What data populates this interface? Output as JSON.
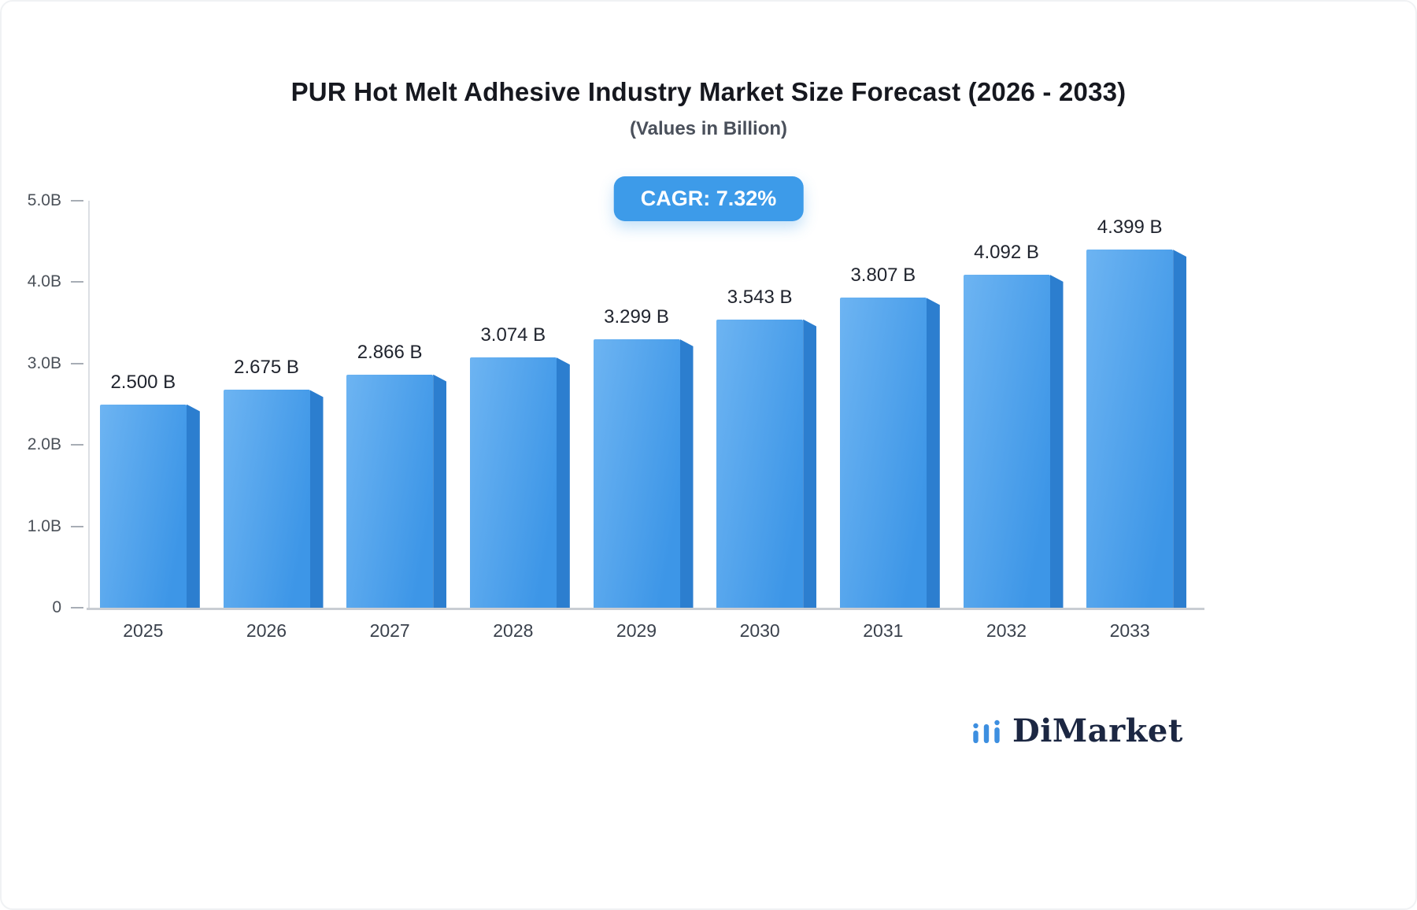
{
  "header": {
    "title": "PUR Hot Melt Adhesive Industry Market Size Forecast (2026 - 2033)",
    "subtitle": "(Values in Billion)"
  },
  "badge": {
    "label": "CAGR: 7.32%"
  },
  "chart_data": {
    "type": "bar",
    "title": "PUR Hot Melt Adhesive Industry Market Size Forecast (2026 - 2033)",
    "subtitle": "(Values in Billion)",
    "categories": [
      "2025",
      "2026",
      "2027",
      "2028",
      "2029",
      "2030",
      "2031",
      "2032",
      "2033"
    ],
    "values": [
      2.5,
      2.675,
      2.866,
      3.074,
      3.299,
      3.543,
      3.807,
      4.092,
      4.399
    ],
    "labels": [
      "2.500 B",
      "2.675 B",
      "2.866 B",
      "3.074 B",
      "3.299 B",
      "3.543 B",
      "3.807 B",
      "4.092 B",
      "4.399 B"
    ],
    "xlabel": "",
    "ylabel": "",
    "ylim": [
      0,
      5
    ],
    "yticks": [
      {
        "value": 5,
        "label": "5.0B"
      },
      {
        "value": 4,
        "label": "4.0B"
      },
      {
        "value": 3,
        "label": "3.0B"
      },
      {
        "value": 2,
        "label": "2.0B"
      },
      {
        "value": 1,
        "label": "1.0B"
      },
      {
        "value": 0,
        "label": "0"
      }
    ],
    "grid": false,
    "legend": "none",
    "annotation": "CAGR: 7.32%"
  },
  "colors": {
    "bar_face_light": "#6db4f2",
    "bar_face": "#3d96e7",
    "bar_side": "#2c7ecf",
    "badge_bg": "#3d9be9",
    "logo_icon": "#3d8fe0",
    "logo_text": "#1c2742"
  },
  "logo": {
    "text": "DiMarket"
  }
}
